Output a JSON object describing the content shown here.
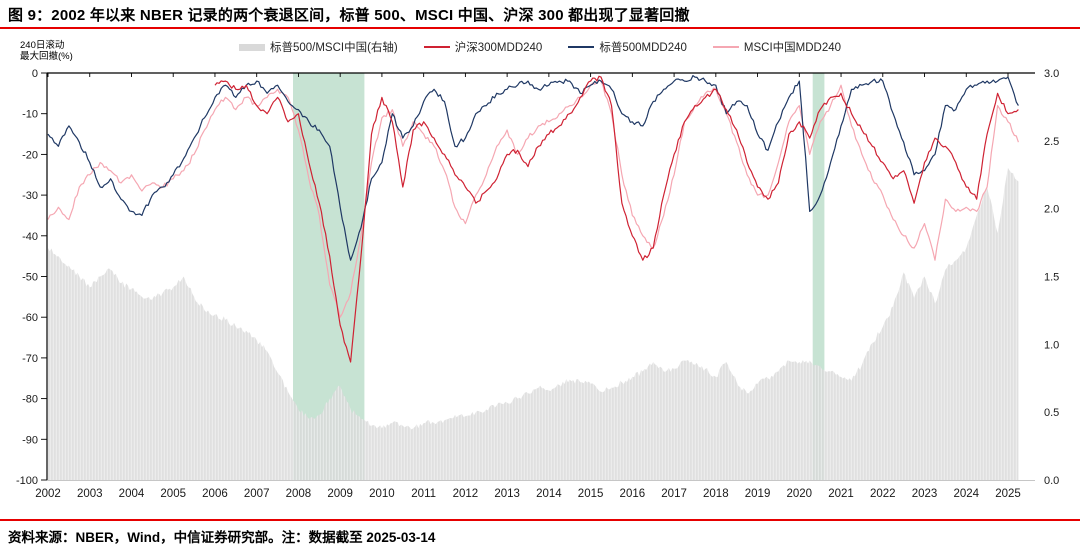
{
  "title": "图 9：2002 年以来 NBER 记录的两个衰退区间，标普 500、MSCI 中国、沪深 300 都出现了显著回撤",
  "source_note": "资料来源：NBER，Wind，中信证券研究部。注：数据截至 2025-03-14",
  "colors": {
    "rule_red": "#e60000",
    "band_green": "#c7e3d3",
    "area_gray": "#d9d9d9",
    "csi300_red": "#cf2233",
    "sp500_navy": "#1f3864",
    "msci_china_pink": "#f5a7b2",
    "axis_black": "#000000",
    "tick_text": "#1a1a1a"
  },
  "chart_data": {
    "type": "line",
    "title": "",
    "y_left_label1": "240日滚动",
    "y_left_label2": "最大回撤(%)",
    "y_left": {
      "min": -100,
      "max": 0,
      "ticks": [
        0,
        -10,
        -20,
        -30,
        -40,
        -50,
        -60,
        -70,
        -80,
        -90,
        -100
      ]
    },
    "y_right": {
      "min": 0,
      "max": 3,
      "tick_labels": [
        "3.0",
        "2.5",
        "2.0",
        "1.5",
        "1.0",
        "0.5",
        "0.0"
      ],
      "ticks": [
        3.0,
        2.5,
        2.0,
        1.5,
        1.0,
        0.5,
        0.0
      ]
    },
    "x_ticks": [
      2002,
      2003,
      2004,
      2005,
      2006,
      2007,
      2008,
      2009,
      2010,
      2011,
      2012,
      2013,
      2014,
      2015,
      2016,
      2017,
      2018,
      2019,
      2020,
      2021,
      2022,
      2023,
      2024,
      2025
    ],
    "recession_bands": [
      {
        "from": 2007.87,
        "to": 2009.58
      },
      {
        "from": 2020.32,
        "to": 2020.6
      }
    ],
    "x": [
      2002,
      2002.25,
      2002.5,
      2002.75,
      2003,
      2003.25,
      2003.5,
      2003.75,
      2004,
      2004.25,
      2004.5,
      2004.75,
      2005,
      2005.25,
      2005.5,
      2005.75,
      2006,
      2006.25,
      2006.5,
      2006.75,
      2007,
      2007.25,
      2007.5,
      2007.75,
      2008,
      2008.25,
      2008.5,
      2008.75,
      2009,
      2009.25,
      2009.5,
      2009.75,
      2010,
      2010.25,
      2010.5,
      2010.75,
      2011,
      2011.25,
      2011.5,
      2011.75,
      2012,
      2012.25,
      2012.5,
      2012.75,
      2013,
      2013.25,
      2013.5,
      2013.75,
      2014,
      2014.25,
      2014.5,
      2014.75,
      2015,
      2015.25,
      2015.5,
      2015.75,
      2016,
      2016.25,
      2016.5,
      2016.75,
      2017,
      2017.25,
      2017.5,
      2017.75,
      2018,
      2018.25,
      2018.5,
      2018.75,
      2019,
      2019.25,
      2019.5,
      2019.75,
      2020,
      2020.25,
      2020.5,
      2020.75,
      2021,
      2021.25,
      2021.5,
      2021.75,
      2022,
      2022.25,
      2022.5,
      2022.75,
      2023,
      2023.25,
      2023.5,
      2023.75,
      2024,
      2024.25,
      2024.5,
      2024.75,
      2025,
      2025.25
    ],
    "series": [
      {
        "name": "标普500/MSCI中国(右轴)",
        "axis": "right",
        "kind": "area",
        "swatch": "bar",
        "color": "#d9d9d9",
        "draw_order": 0,
        "values": [
          1.71,
          1.65,
          1.58,
          1.5,
          1.42,
          1.5,
          1.55,
          1.45,
          1.41,
          1.35,
          1.33,
          1.38,
          1.42,
          1.5,
          1.35,
          1.25,
          1.22,
          1.18,
          1.13,
          1.1,
          1.03,
          0.95,
          0.79,
          0.65,
          0.52,
          0.45,
          0.48,
          0.6,
          0.69,
          0.52,
          0.45,
          0.4,
          0.38,
          0.42,
          0.4,
          0.38,
          0.42,
          0.42,
          0.44,
          0.48,
          0.47,
          0.5,
          0.52,
          0.55,
          0.57,
          0.6,
          0.64,
          0.68,
          0.66,
          0.7,
          0.74,
          0.72,
          0.71,
          0.65,
          0.68,
          0.72,
          0.76,
          0.8,
          0.87,
          0.8,
          0.82,
          0.88,
          0.85,
          0.82,
          0.76,
          0.87,
          0.72,
          0.64,
          0.71,
          0.75,
          0.8,
          0.88,
          0.87,
          0.88,
          0.84,
          0.8,
          0.76,
          0.73,
          0.85,
          1.01,
          1.13,
          1.28,
          1.53,
          1.34,
          1.5,
          1.3,
          1.55,
          1.62,
          1.71,
          1.95,
          2.16,
          1.82,
          2.3,
          2.2
        ]
      },
      {
        "name": "沪深300MDD240",
        "axis": "left",
        "kind": "line",
        "swatch": "line",
        "color": "#cf2233",
        "draw_order": 3,
        "values": [
          null,
          null,
          null,
          null,
          null,
          null,
          null,
          null,
          null,
          null,
          null,
          null,
          null,
          null,
          null,
          null,
          -3,
          -2,
          -4,
          -3,
          -8,
          -10,
          -6,
          -12,
          -10,
          -22,
          -32,
          -45,
          -62,
          -71,
          -45,
          -15,
          -6,
          -12,
          -28,
          -14,
          -12,
          -16,
          -20,
          -25,
          -28,
          -32,
          -29,
          -26,
          -20,
          -19,
          -23,
          -18,
          -15,
          -13,
          -10,
          -6,
          -2,
          -1,
          -8,
          -32,
          -40,
          -46,
          -43,
          -30,
          -20,
          -12,
          -8,
          -6,
          -4,
          -9,
          -14,
          -22,
          -28,
          -31,
          -27,
          -15,
          -12,
          -16,
          -9,
          -6,
          -5,
          -10,
          -14,
          -18,
          -22,
          -26,
          -24,
          -32,
          -22,
          -16,
          -18,
          -22,
          -28,
          -31,
          -15,
          -5,
          -10,
          -9
        ]
      },
      {
        "name": "标普500MDD240",
        "axis": "left",
        "kind": "line",
        "swatch": "line",
        "color": "#1f3864",
        "draw_order": 2,
        "values": [
          -15,
          -18,
          -13,
          -17,
          -22,
          -28,
          -26,
          -31,
          -34,
          -35,
          -30,
          -28,
          -25,
          -21,
          -16,
          -11,
          -6,
          -3,
          -6,
          -3,
          -2,
          -5,
          -3,
          -7,
          -9,
          -12,
          -14,
          -18,
          -33,
          -46,
          -38,
          -26,
          -22,
          -10,
          -16,
          -13,
          -7,
          -4,
          -7,
          -18,
          -16,
          -10,
          -8,
          -5,
          -4,
          -3,
          -2,
          -4,
          -3,
          -2,
          -2,
          -5,
          -3,
          -2,
          -4,
          -10,
          -12,
          -13,
          -7,
          -4,
          -2,
          -2,
          -1,
          -2,
          -3,
          -10,
          -7,
          -8,
          -15,
          -19,
          -12,
          -6,
          -2,
          -34,
          -30,
          -22,
          -13,
          -4,
          -3,
          -2,
          -2,
          -10,
          -17,
          -25,
          -24,
          -20,
          -8,
          -9,
          -4,
          -3,
          -2,
          -2,
          -1,
          -8
        ]
      },
      {
        "name": "MSCI中国MDD240",
        "axis": "left",
        "kind": "line",
        "swatch": "line",
        "color": "#f5a7b2",
        "draw_order": 1,
        "values": [
          -36,
          -33,
          -36,
          -28,
          -25,
          -22,
          -24,
          -27,
          -25,
          -29,
          -27,
          -28,
          -26,
          -24,
          -20,
          -14,
          -9,
          -6,
          -9,
          -6,
          -8,
          -6,
          -4,
          -6,
          -14,
          -26,
          -35,
          -52,
          -60,
          -54,
          -40,
          -22,
          -11,
          -9,
          -18,
          -12,
          -15,
          -18,
          -24,
          -33,
          -37,
          -30,
          -25,
          -18,
          -14,
          -20,
          -16,
          -13,
          -12,
          -10,
          -8,
          -6,
          -3,
          -2,
          -10,
          -25,
          -35,
          -40,
          -43,
          -35,
          -25,
          -12,
          -8,
          -5,
          -4,
          -10,
          -17,
          -25,
          -30,
          -30,
          -22,
          -12,
          -8,
          -20,
          -12,
          -8,
          -3,
          -13,
          -20,
          -26,
          -30,
          -36,
          -40,
          -43,
          -37,
          -46,
          -31,
          -34,
          -33,
          -34,
          -28,
          -8,
          -12,
          -17
        ]
      }
    ]
  }
}
